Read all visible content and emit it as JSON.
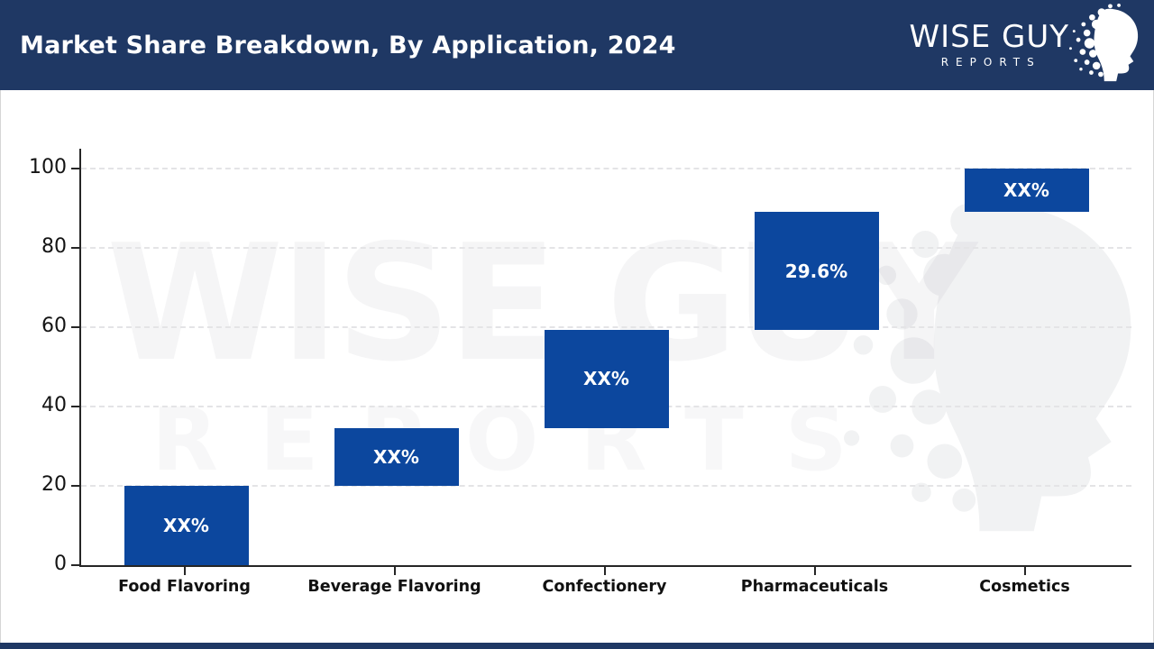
{
  "header": {
    "title": "Market Share Breakdown, By Application, 2024",
    "bg_color": "#1f3864",
    "logo": {
      "line1": "WISE GUY",
      "line2": "REPORTS",
      "icon": "dotted-face-profile"
    }
  },
  "watermark": {
    "line1": "WISE GUY",
    "line2": "REPORTS",
    "icon": "dotted-face-profile"
  },
  "chart_data": {
    "type": "bar",
    "subtype": "floating-waterfall",
    "title": "Market Share Breakdown, By Application, 2024",
    "categories": [
      "Food Flavoring",
      "Beverage Flavoring",
      "Confectionery",
      "Pharmaceuticals",
      "Cosmetics"
    ],
    "segments": [
      {
        "category": "Food Flavoring",
        "start": 0,
        "end": 20,
        "label": "XX%"
      },
      {
        "category": "Beverage Flavoring",
        "start": 20,
        "end": 34.5,
        "label": "XX%"
      },
      {
        "category": "Confectionery",
        "start": 34.5,
        "end": 59.4,
        "label": "XX%"
      },
      {
        "category": "Pharmaceuticals",
        "start": 59.4,
        "end": 89,
        "label": "29.6%"
      },
      {
        "category": "Cosmetics",
        "start": 89,
        "end": 100,
        "label": "XX%"
      }
    ],
    "y_ticks": [
      0,
      20,
      40,
      60,
      80,
      100
    ],
    "ylim": [
      0,
      105
    ],
    "xlabel": "",
    "ylabel": "",
    "bar_color": "#0c479e",
    "label_color": "#ffffff",
    "grid": "horizontal-dashed",
    "legend": "none"
  }
}
